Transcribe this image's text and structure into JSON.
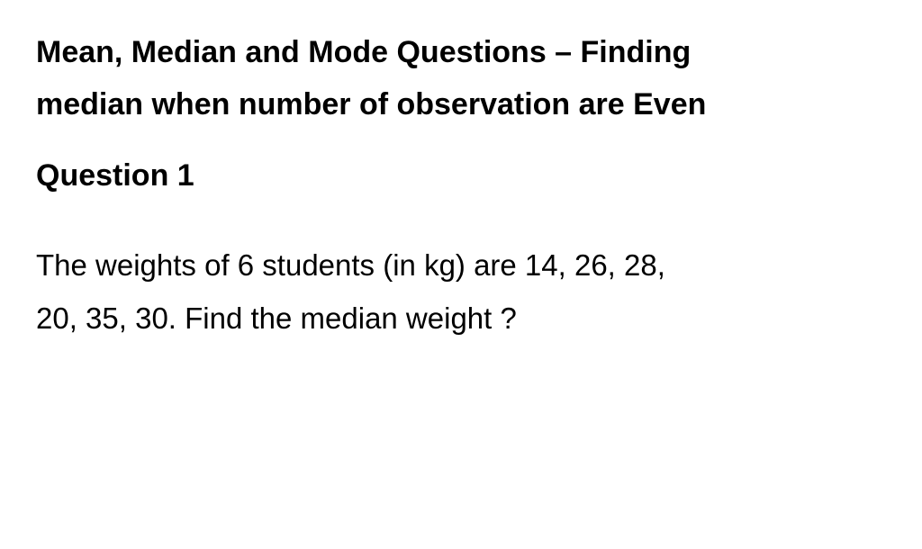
{
  "document": {
    "heading_line1": "Mean, Median and Mode Questions – Finding",
    "heading_line2": "median when number of observation are Even",
    "question_label": "Question 1",
    "question_text_line1": "The weights of 6 students (in kg) are 14, 26, 28,",
    "question_text_line2": "20, 35, 30. Find the median weight ?",
    "colors": {
      "text": "#000000",
      "background": "#ffffff"
    },
    "typography": {
      "heading_fontsize": 34,
      "heading_weight": 700,
      "body_fontsize": 33,
      "body_weight": 400,
      "font_family": "Arial, Helvetica, sans-serif"
    }
  }
}
